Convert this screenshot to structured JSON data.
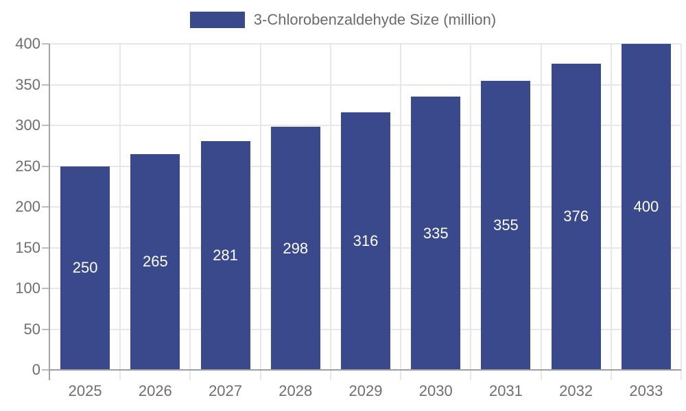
{
  "legend": {
    "label": "3-Chlorobenzaldehyde Size (million)"
  },
  "colors": {
    "bar": "#39498B",
    "axis": "#9e9e9e",
    "grid": "#e7e7e7",
    "tick_label": "#6e6e6e",
    "value_label": "#ffffff",
    "background": "#ffffff"
  },
  "chart_data": {
    "type": "bar",
    "title": "",
    "xlabel": "",
    "ylabel": "",
    "categories": [
      "2025",
      "2026",
      "2027",
      "2028",
      "2029",
      "2030",
      "2031",
      "2032",
      "2033"
    ],
    "values": [
      250,
      265,
      281,
      298,
      316,
      335,
      355,
      376,
      400
    ],
    "series": [
      {
        "name": "3-Chlorobenzaldehyde Size (million)",
        "values": [
          250,
          265,
          281,
          298,
          316,
          335,
          355,
          376,
          400
        ]
      }
    ],
    "ylim": [
      0,
      400
    ],
    "ytick_step": 50,
    "yticks": [
      0,
      50,
      100,
      150,
      200,
      250,
      300,
      350,
      400
    ],
    "grid": true,
    "legend_position": "top-center",
    "value_label_position": "inside-center",
    "bar_color": "#39498B"
  }
}
